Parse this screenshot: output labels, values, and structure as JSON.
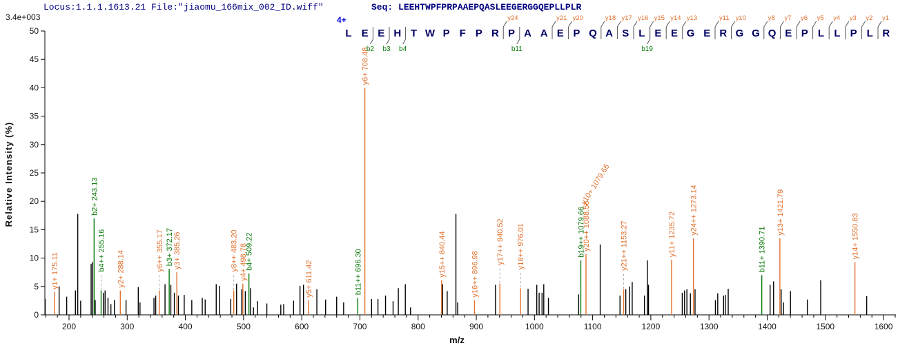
{
  "header": {
    "locus_file": "Locus:1.1.1.1613.21 File:\"jiaomu_166mix_002_ID.wiff\"",
    "seq_label": "Seq: ",
    "sequence": "LEEHTWPFPRPAAEPQASLEEGERGGQEPLLPLR"
  },
  "scale_note": "3.4e+003",
  "colors": {
    "b_ion": "#0b7a0b",
    "y_ion": "#e1722f",
    "peak": "#000000",
    "header_text": "#000080",
    "sequence_text": "#000066",
    "charge_text": "#0000dd",
    "connector": "#a9a9a9",
    "axis": "#000000",
    "cut_flag": "#555555"
  },
  "chart_data": {
    "type": "bar",
    "subtype": "ms2-peptide-fragmentation-spectrum",
    "title": "",
    "xlabel": "m/z",
    "ylabel": "Relative Intensity (%)",
    "x_range": [
      158,
      1620
    ],
    "ylim": [
      0,
      50
    ],
    "y_tick_step": 5,
    "x_major_ticks": [
      200,
      300,
      400,
      500,
      600,
      700,
      800,
      900,
      1000,
      1100,
      1200,
      1300,
      1400,
      1500,
      1600
    ],
    "x_minor_step": 20,
    "grid": false,
    "precursor_charge": "4+",
    "peptide": {
      "residues": [
        "L",
        "E",
        "E",
        "H",
        "T",
        "W",
        "P",
        "F",
        "P",
        "R",
        "P",
        "A",
        "A",
        "E",
        "P",
        "Q",
        "A",
        "S",
        "L",
        "E",
        "E",
        "G",
        "E",
        "R",
        "G",
        "G",
        "Q",
        "E",
        "P",
        "L",
        "L",
        "P",
        "L",
        "R"
      ],
      "b_cuts": [
        {
          "after": 2,
          "label": "b2"
        },
        {
          "after": 3,
          "label": "b3"
        },
        {
          "after": 4,
          "label": "b4"
        },
        {
          "after": 11,
          "label": "b11"
        },
        {
          "after": 19,
          "label": "b19"
        }
      ],
      "y_cuts": [
        {
          "after": 10,
          "label": "y24"
        },
        {
          "after": 13,
          "label": "y21"
        },
        {
          "after": 14,
          "label": "y20"
        },
        {
          "after": 16,
          "label": "y18"
        },
        {
          "after": 17,
          "label": "y17"
        },
        {
          "after": 18,
          "label": "y16"
        },
        {
          "after": 19,
          "label": "y15"
        },
        {
          "after": 20,
          "label": "y14"
        },
        {
          "after": 21,
          "label": "y13"
        },
        {
          "after": 23,
          "label": "y11"
        },
        {
          "after": 24,
          "label": "y10"
        },
        {
          "after": 26,
          "label": "y8"
        },
        {
          "after": 27,
          "label": "y7"
        },
        {
          "after": 28,
          "label": "y6"
        },
        {
          "after": 29,
          "label": "y5"
        },
        {
          "after": 30,
          "label": "y4"
        },
        {
          "after": 31,
          "label": "y3"
        },
        {
          "after": 32,
          "label": "y2"
        },
        {
          "after": 33,
          "label": "y1"
        }
      ]
    },
    "annotated_peaks": [
      {
        "mz": 175.11,
        "pct": 4.0,
        "series": "y",
        "label": "y1+ 175.11"
      },
      {
        "mz": 243.13,
        "pct": 17.0,
        "series": "b",
        "label": "b2+ 243.13"
      },
      {
        "mz": 255.16,
        "pct": 4.3,
        "series": "b",
        "label": "b4++ 255.16",
        "dashed": true
      },
      {
        "mz": 288.14,
        "pct": 4.3,
        "series": "y",
        "label": "y2+ 288.14"
      },
      {
        "mz": 355.17,
        "pct": 4.3,
        "series": "y",
        "label": "y6++ 355.17",
        "dashed": true
      },
      {
        "mz": 372.17,
        "pct": 8.1,
        "series": "b",
        "label": "b3+ 372.17"
      },
      {
        "mz": 385.26,
        "pct": 7.5,
        "series": "y",
        "label": "y3+ 385.26"
      },
      {
        "mz": 483.2,
        "pct": 4.3,
        "series": "y",
        "label": "y8++ 483.20",
        "dashed": true
      },
      {
        "mz": 498.78,
        "pct": 5.5,
        "series": "y",
        "label": "y4+ 498.78"
      },
      {
        "mz": 509.22,
        "pct": 7.3,
        "series": "b",
        "label": "b4+ 509.22"
      },
      {
        "mz": 611.42,
        "pct": 2.6,
        "series": "y",
        "label": "y5+ 611.42"
      },
      {
        "mz": 696.3,
        "pct": 3.0,
        "series": "b",
        "label": "b11++ 696.30"
      },
      {
        "mz": 708.48,
        "pct": 40.0,
        "series": "y",
        "label": "y6+ 708.48"
      },
      {
        "mz": 840.44,
        "pct": 6.1,
        "series": "y",
        "label": "y15++ 840.44"
      },
      {
        "mz": 896.98,
        "pct": 2.6,
        "series": "y",
        "label": "y16++ 896.98"
      },
      {
        "mz": 940.52,
        "pct": 5.5,
        "series": "y",
        "label": "y17++ 940.52",
        "dashed": true
      },
      {
        "mz": 976.01,
        "pct": 4.7,
        "series": "y",
        "label": "y18++ 976.01",
        "dashed": true
      },
      {
        "mz": 1079.66,
        "pct": 9.6,
        "series": "b",
        "label": "b19++ 1079.66"
      },
      {
        "mz": 1079.66,
        "pct": 9.6,
        "series": "y",
        "label": "y10+ 1079.66",
        "diag": true
      },
      {
        "mz": 1088.58,
        "pct": 10.7,
        "series": "y",
        "label": "y20++ 1088.58"
      },
      {
        "mz": 1153.27,
        "pct": 4.5,
        "series": "y",
        "label": "y21++ 1153.27",
        "dashed": true
      },
      {
        "mz": 1235.72,
        "pct": 9.7,
        "series": "y",
        "label": "y11+ 1235.72"
      },
      {
        "mz": 1273.14,
        "pct": 13.5,
        "series": "y",
        "label": "y24++ 1273.14"
      },
      {
        "mz": 1390.71,
        "pct": 7.0,
        "series": "b",
        "label": "b11+ 1390.71"
      },
      {
        "mz": 1421.79,
        "pct": 13.5,
        "series": "y",
        "label": "y13+ 1421.79"
      },
      {
        "mz": 1550.83,
        "pct": 9.3,
        "series": "y",
        "label": "y14+ 1550.83"
      }
    ],
    "unannotated_peaks": [
      [
        159,
        2.8
      ],
      [
        183,
        5.0
      ],
      [
        196,
        3.2
      ],
      [
        211,
        4.3
      ],
      [
        215,
        17.8
      ],
      [
        220,
        2.5
      ],
      [
        238,
        9.0
      ],
      [
        240,
        9.3
      ],
      [
        245,
        2.6
      ],
      [
        259,
        3.9
      ],
      [
        262,
        4.3
      ],
      [
        267,
        3.0
      ],
      [
        272,
        1.9
      ],
      [
        278,
        2.6
      ],
      [
        298,
        2.6
      ],
      [
        319,
        4.9
      ],
      [
        322,
        2.2
      ],
      [
        346,
        3.0
      ],
      [
        349,
        3.4
      ],
      [
        365,
        5.4
      ],
      [
        375,
        5.3
      ],
      [
        381,
        3.9
      ],
      [
        388,
        3.4
      ],
      [
        398,
        3.5
      ],
      [
        411,
        2.6
      ],
      [
        429,
        3.0
      ],
      [
        434,
        2.7
      ],
      [
        453,
        5.4
      ],
      [
        459,
        5.1
      ],
      [
        478,
        2.8
      ],
      [
        488,
        5.5
      ],
      [
        497,
        4.5
      ],
      [
        503,
        4.2
      ],
      [
        512,
        4.7
      ],
      [
        517,
        1.3
      ],
      [
        524,
        2.4
      ],
      [
        540,
        2.0
      ],
      [
        564,
        1.8
      ],
      [
        569,
        1.9
      ],
      [
        586,
        2.5
      ],
      [
        597,
        5.1
      ],
      [
        603,
        5.3
      ],
      [
        626,
        4.5
      ],
      [
        641,
        2.7
      ],
      [
        660,
        3.2
      ],
      [
        672,
        2.2
      ],
      [
        720,
        2.8
      ],
      [
        731,
        2.8
      ],
      [
        744,
        3.4
      ],
      [
        757,
        2.4
      ],
      [
        766,
        4.7
      ],
      [
        778,
        5.4
      ],
      [
        787,
        1.3
      ],
      [
        842,
        5.4
      ],
      [
        850,
        4.2
      ],
      [
        865,
        17.8
      ],
      [
        868,
        2.2
      ],
      [
        933,
        5.3
      ],
      [
        989,
        4.6
      ],
      [
        1004,
        5.3
      ],
      [
        1008,
        3.9
      ],
      [
        1013,
        3.9
      ],
      [
        1016,
        5.4
      ],
      [
        1024,
        3.0
      ],
      [
        1076,
        3.6
      ],
      [
        1113,
        12.4
      ],
      [
        1147,
        3.4
      ],
      [
        1157,
        4.5
      ],
      [
        1163,
        5.0
      ],
      [
        1168,
        5.8
      ],
      [
        1189,
        3.4
      ],
      [
        1194,
        9.6
      ],
      [
        1196,
        5.3
      ],
      [
        1254,
        3.9
      ],
      [
        1258,
        4.3
      ],
      [
        1262,
        4.5
      ],
      [
        1268,
        3.8
      ],
      [
        1276,
        4.5
      ],
      [
        1311,
        2.6
      ],
      [
        1315,
        3.8
      ],
      [
        1325,
        3.4
      ],
      [
        1328,
        3.5
      ],
      [
        1333,
        4.6
      ],
      [
        1405,
        5.3
      ],
      [
        1411,
        5.9
      ],
      [
        1424,
        4.5
      ],
      [
        1428,
        2.2
      ],
      [
        1440,
        4.2
      ],
      [
        1469,
        2.7
      ],
      [
        1492,
        6.1
      ],
      [
        1571,
        3.3
      ]
    ]
  }
}
